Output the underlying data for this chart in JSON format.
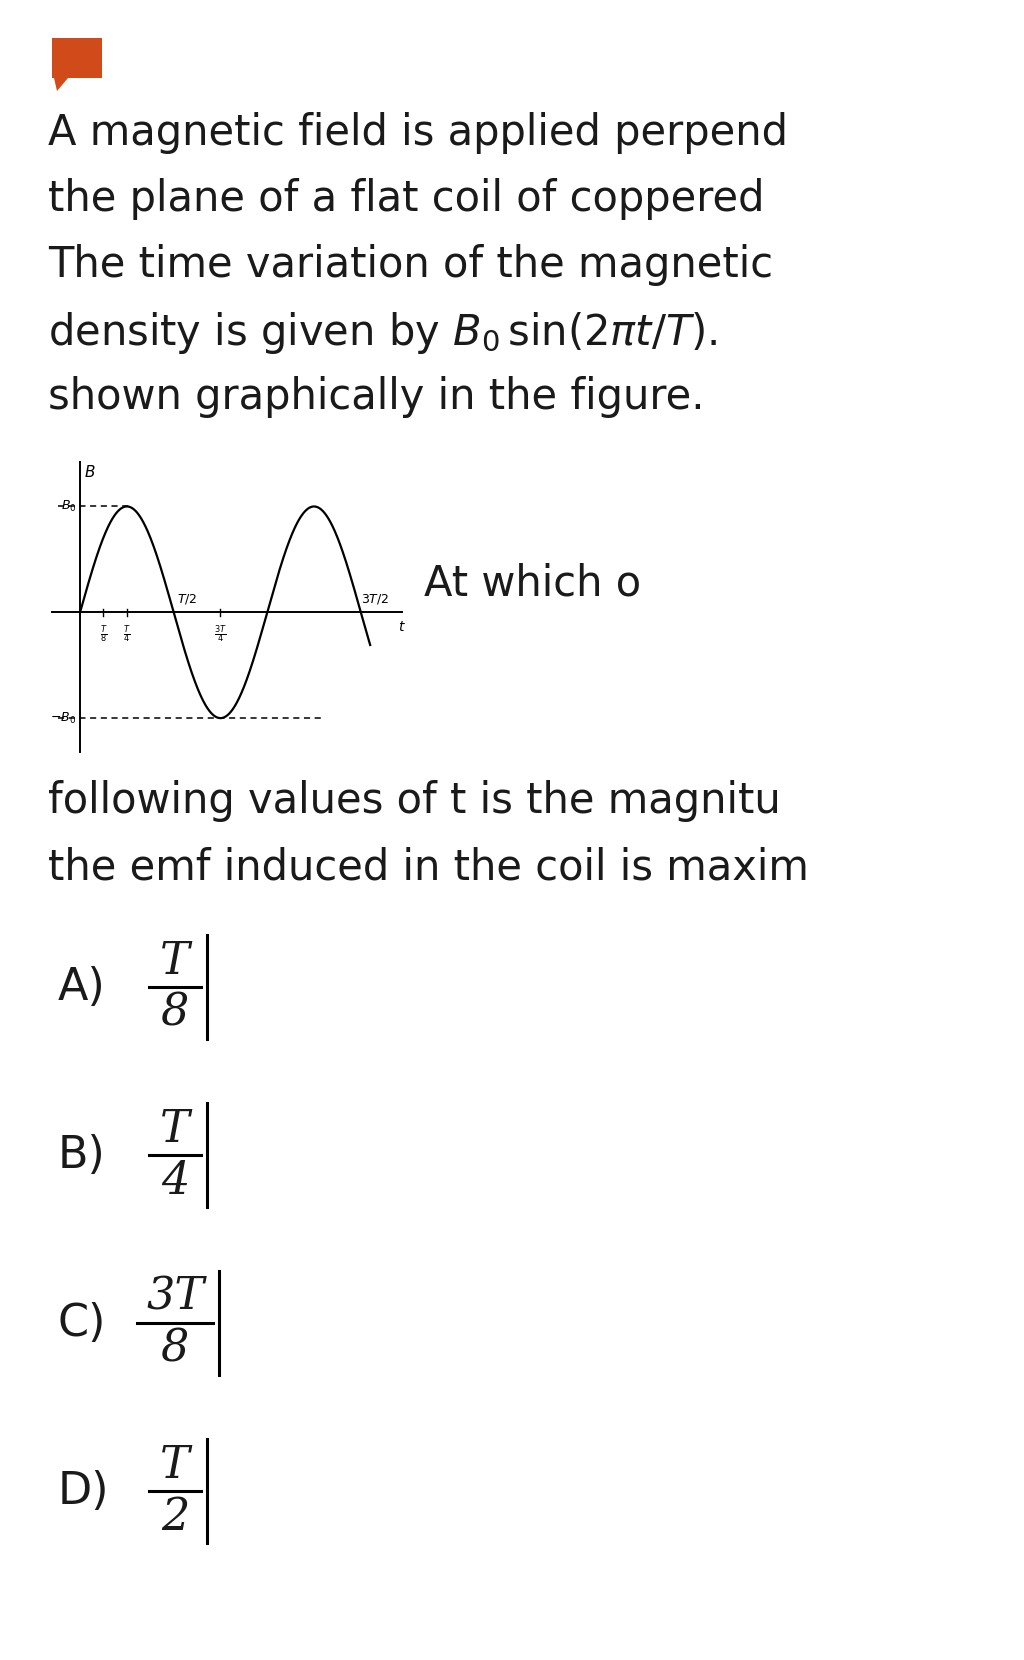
{
  "bg_color": "#ffffff",
  "icon_color": "#d04a1a",
  "text_color": "#1a1a1a",
  "lines": [
    "A magnetic field is applied perpend",
    "the plane of a flat coil of coppered",
    "The time variation of the magnetic",
    "density is given by $B_0\\,\\sin(2\\pi t/T)$.",
    "shown graphically in the figure."
  ],
  "question_lines": [
    "following values of t is the magnitu",
    "the emf induced in the coil is maxim"
  ],
  "at_which_text": "At which o",
  "options": [
    {
      "label": "A)",
      "num": "T",
      "den": "8"
    },
    {
      "label": "B)",
      "num": "T",
      "den": "4"
    },
    {
      "label": "C)",
      "num": "3T",
      "den": "8"
    },
    {
      "label": "D)",
      "num": "T",
      "den": "2"
    }
  ],
  "figsize": [
    10.24,
    16.6
  ],
  "dpi": 100
}
